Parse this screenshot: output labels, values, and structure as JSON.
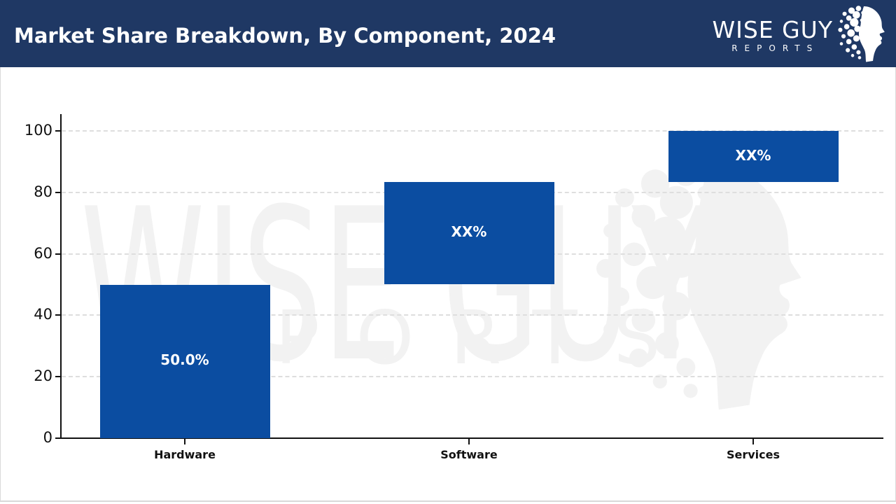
{
  "header": {
    "title": "Market Share Breakdown, By Component, 2024",
    "logo": {
      "line1": "WISE GUY",
      "line2": "REPORTS"
    }
  },
  "watermark": {
    "line1": "WISE GUY",
    "line2": "REPORTS"
  },
  "chart_data": {
    "type": "bar",
    "subtype": "waterfall",
    "title": "Market Share Breakdown, By Component, 2024",
    "categories": [
      "Hardware",
      "Software",
      "Services"
    ],
    "segments": [
      {
        "category": "Hardware",
        "start": 0,
        "end": 50,
        "label": "50.0%"
      },
      {
        "category": "Software",
        "start": 50,
        "end": 83.3,
        "label": "XX%"
      },
      {
        "category": "Services",
        "start": 83.3,
        "end": 100,
        "label": "XX%"
      }
    ],
    "yticks": [
      0,
      20,
      40,
      60,
      80,
      100
    ],
    "ylim": [
      0,
      105
    ],
    "xlabel": "",
    "ylabel": "",
    "grid": "horizontal dashed",
    "legend": "none",
    "bar_color": "#0b4da1"
  },
  "colors": {
    "header_bg": "#1f3864",
    "bar": "#0b4da1",
    "grid": "#dedede",
    "watermark": "#f2f2f2",
    "axis": "#111111"
  }
}
